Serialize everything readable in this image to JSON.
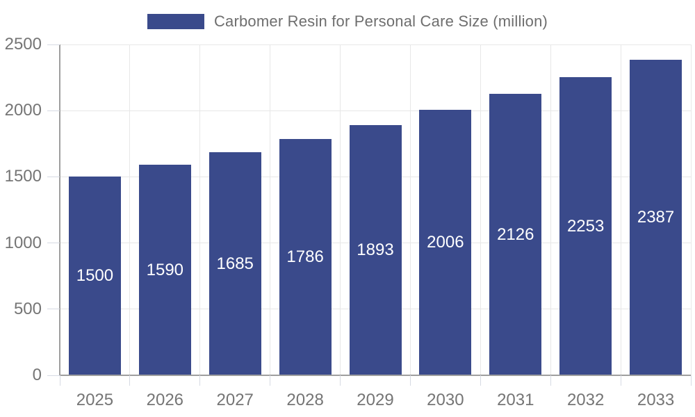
{
  "legend": {
    "label": "Carbomer Resin for Personal Care Size (million)"
  },
  "chart_data": {
    "type": "bar",
    "title": "Carbomer Resin for Personal Care Size (million)",
    "categories": [
      "2025",
      "2026",
      "2027",
      "2028",
      "2029",
      "2030",
      "2031",
      "2032",
      "2033"
    ],
    "values": [
      1500,
      1590,
      1685,
      1786,
      1893,
      2006,
      2126,
      2253,
      2387
    ],
    "xlabel": "",
    "ylabel": "",
    "ylim": [
      0,
      2500
    ],
    "yticks": [
      0,
      500,
      1000,
      1500,
      2000,
      2500
    ],
    "grid": true,
    "legend_position": "top",
    "bar_label_position": "inside-center"
  },
  "colors": {
    "bar": "#3A4A8B",
    "bar_label": "#FFFFFF",
    "grid": "#E7E7E7",
    "axis": "#9E9E9E",
    "tick": "#D6DAE3",
    "text": "#757575",
    "background": "#FFFFFF"
  }
}
